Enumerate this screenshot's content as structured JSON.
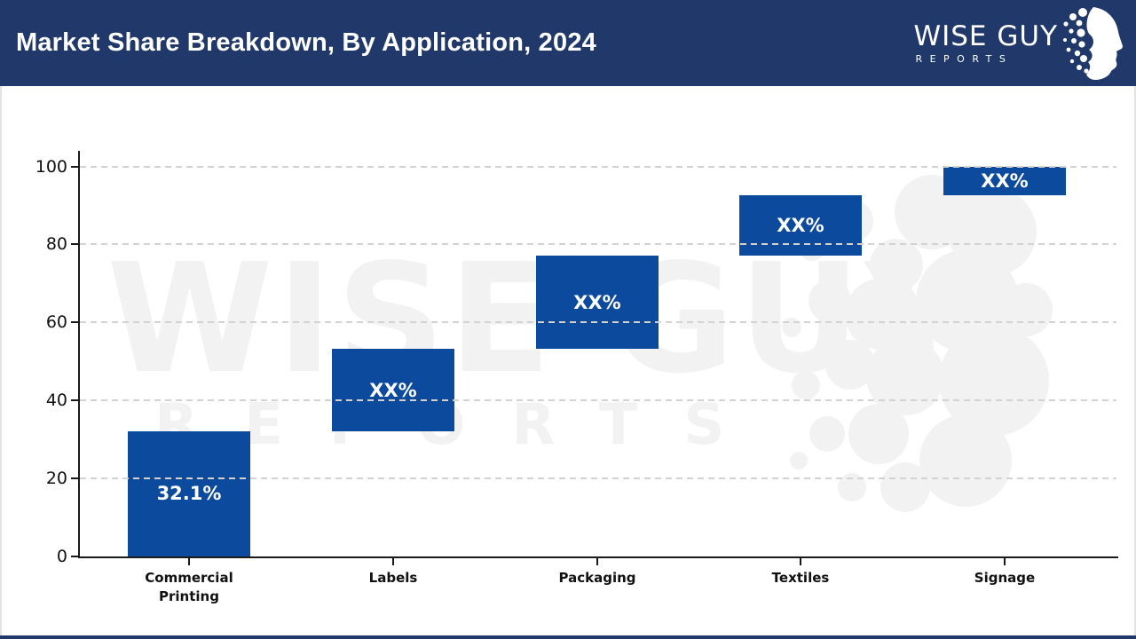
{
  "header": {
    "title": "Market Share Breakdown, By Application, 2024",
    "logo": {
      "wordmark": "WISE GUY",
      "subtitle": "REPORTS"
    }
  },
  "watermark": {
    "line1": "WISE GUY",
    "line2": "REPORTS"
  },
  "chart_data": {
    "type": "bar",
    "subtype": "waterfall",
    "title": "Market Share Breakdown, By Application, 2024",
    "categories": [
      "Commercial Printing",
      "Labels",
      "Packaging",
      "Textiles",
      "Signage"
    ],
    "segments": [
      {
        "category": "Commercial Printing",
        "start": 0,
        "end": 32.1,
        "label": "32.1%"
      },
      {
        "category": "Labels",
        "start": 32.1,
        "end": 53.2,
        "label": "XX%"
      },
      {
        "category": "Packaging",
        "start": 53.2,
        "end": 77.2,
        "label": "XX%"
      },
      {
        "category": "Textiles",
        "start": 77.2,
        "end": 92.6,
        "label": "XX%"
      },
      {
        "category": "Signage",
        "start": 92.6,
        "end": 99.9,
        "label": "XX%"
      }
    ],
    "xlabel": "",
    "ylabel": "",
    "ylim": [
      0,
      100
    ],
    "yticks": [
      0,
      20,
      40,
      60,
      80,
      100
    ],
    "grid": "dashed-horizontal",
    "legend": "none",
    "colors": {
      "bar": "#0c4a9d",
      "bar_label": "#ffffff",
      "axis": "#1a1a1a",
      "gridline": "#d2d2d2",
      "header": "#21386a",
      "watermark": "#f2f2f2"
    }
  }
}
